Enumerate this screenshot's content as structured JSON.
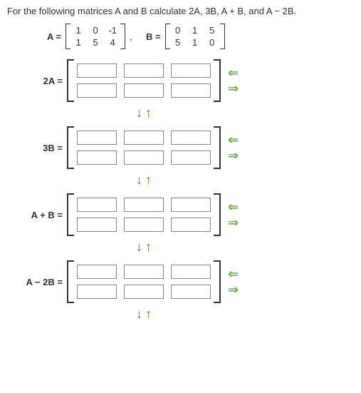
{
  "prompt": "For the following matrices A and B calculate 2A, 3B,  A + B,  and  A − 2B.",
  "given": {
    "A_label": "A =",
    "B_label": "B =",
    "comma": ",",
    "A": [
      [
        "1",
        "0",
        "-1"
      ],
      [
        "1",
        "5",
        "4"
      ]
    ],
    "B": [
      [
        "0",
        "1",
        "5"
      ],
      [
        "5",
        "1",
        "0"
      ]
    ]
  },
  "results": [
    {
      "label": "2A ="
    },
    {
      "label": "3B ="
    },
    {
      "label": "A + B ="
    },
    {
      "label": "A − 2B ="
    }
  ],
  "matrix_shape": {
    "rows": 2,
    "cols": 3
  },
  "arrows": {
    "shrink_h": "⇐",
    "grow_h": "⇒",
    "grow_v": "↓",
    "shrink_v": "↑"
  },
  "style": {
    "arrow_color": "#5fae3a",
    "input_border": "#888888",
    "text_color": "#333333",
    "bracket_color": "#333333"
  }
}
